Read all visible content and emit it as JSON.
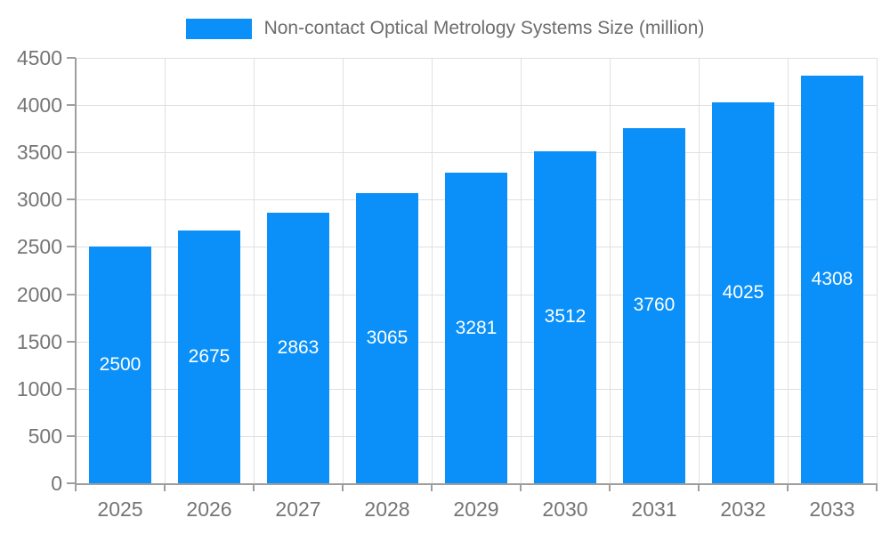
{
  "legend": {
    "label": "Non-contact Optical Metrology Systems Size (million)"
  },
  "chart_data": {
    "type": "bar",
    "title": "Non-contact Optical Metrology Systems Size (million)",
    "categories": [
      "2025",
      "2026",
      "2027",
      "2028",
      "2029",
      "2030",
      "2031",
      "2032",
      "2033"
    ],
    "values": [
      2500,
      2675,
      2863,
      3065,
      3281,
      3512,
      3760,
      4025,
      4308
    ],
    "xlabel": "",
    "ylabel": "",
    "ylim": [
      0,
      4500
    ],
    "ytick_step": 500,
    "grid": "on",
    "legend_position": "top",
    "bar_label_position": "inside-middle",
    "colors": {
      "bar": "#0a90f8",
      "bar_label": "#ffffff",
      "gridline": "#e0e0e0",
      "axis_line": "#9e9e9e",
      "tick_label": "#757575",
      "legend_text": "#6d6d6d",
      "background": "#ffffff"
    }
  }
}
